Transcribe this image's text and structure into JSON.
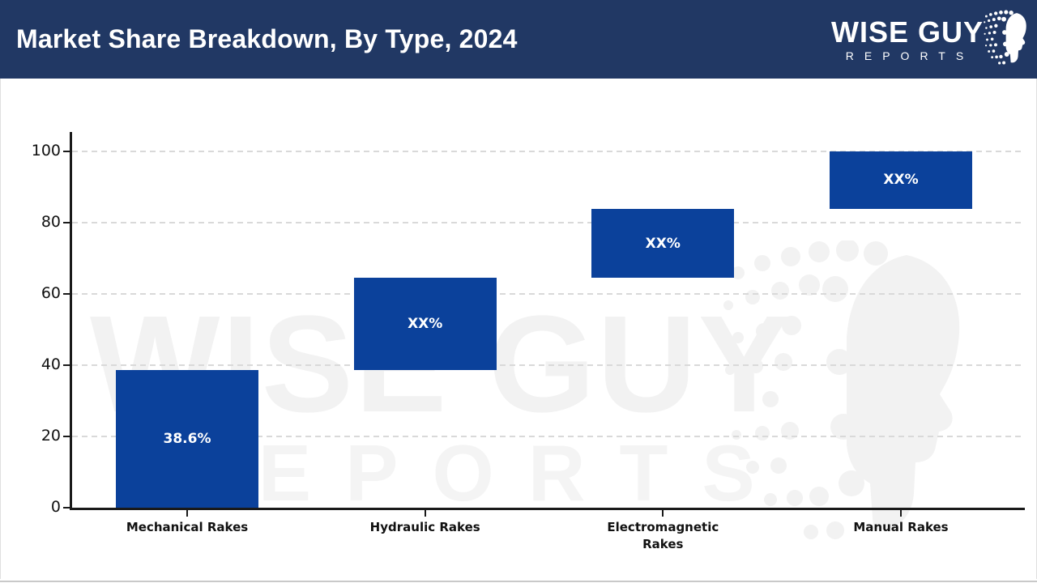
{
  "header": {
    "title": "Market Share Breakdown, By Type, 2024",
    "bg_color": "#213864",
    "logo": {
      "line1": "WISE GUY",
      "line2": "REPORTS"
    }
  },
  "watermark": {
    "line1": "WISE GUY",
    "line2": "REPORTS"
  },
  "chart_data": {
    "type": "bar",
    "variant": "stacked-cascade-segments",
    "title": "Market Share Breakdown, By Type, 2024",
    "categories": [
      "Mechanical Rakes",
      "Hydraulic Rakes",
      "Electromagnetic Rakes",
      "Manual Rakes"
    ],
    "series": [
      {
        "name": "Market share (%)",
        "starts": [
          0,
          38.6,
          64.5,
          83.9
        ],
        "values": [
          38.6,
          25.9,
          19.4,
          16.1
        ]
      }
    ],
    "bar_labels": [
      "38.6%",
      "XX%",
      "XX%",
      "XX%"
    ],
    "xlabel": "",
    "ylabel": "",
    "ylim": [
      0,
      100
    ],
    "yticks": [
      0,
      20,
      40,
      60,
      80,
      100
    ],
    "grid": "horizontal-dashed",
    "legend": "none",
    "bar_color": "#0b419b",
    "bar_label_color": "#ffffff",
    "axis_color": "#1a1a1a",
    "gridline_color": "#d9d9d9"
  }
}
